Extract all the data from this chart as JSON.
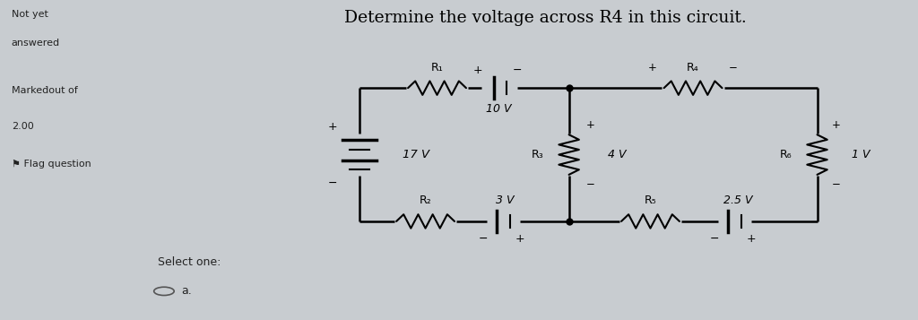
{
  "title": "Determine the voltage across R4 in this circuit.",
  "sidebar_bg": "#b0b8c0",
  "main_bg": "#d8d8d8",
  "bottom_bg": "#c8ccd0",
  "left_text": [
    "Not yet",
    "answered",
    "Markeḋout of",
    "2.00",
    "Flag question"
  ],
  "circuit": {
    "R1": "R₁",
    "R2": "R₂",
    "R3": "R₃",
    "R4": "R₄",
    "R5": "R₅",
    "R6": "R₆",
    "V1": "17 V",
    "V2": "10 V",
    "V3": "3 V",
    "V4": "4 V",
    "V5": "2.5 V",
    "V6": "1 V"
  },
  "select_one_text": "Select one:",
  "option_a_text": "a."
}
